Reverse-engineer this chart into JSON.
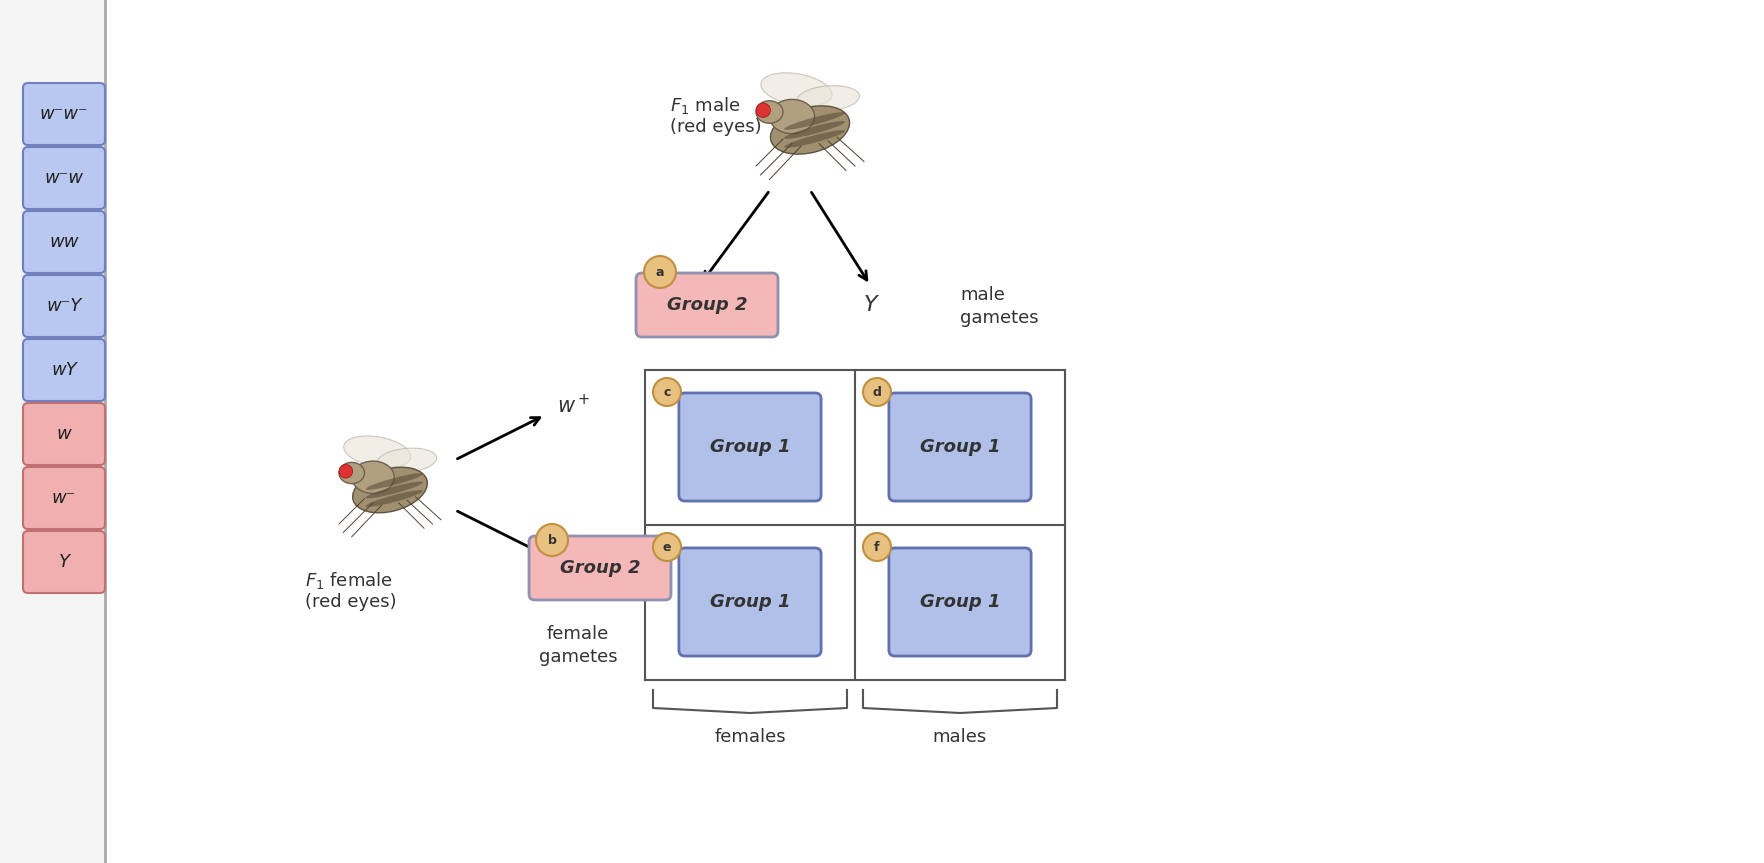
{
  "background_color": "#ffffff",
  "sidebar_boxes": [
    {
      "label": "w⁻w⁻",
      "color": "#b8c8f0",
      "border": "#7080c0",
      "text_color": "#222222"
    },
    {
      "label": "w⁻w",
      "color": "#b8c8f0",
      "border": "#7080c0",
      "text_color": "#222222"
    },
    {
      "label": "ww",
      "color": "#b8c8f0",
      "border": "#7080c0",
      "text_color": "#222222"
    },
    {
      "label": "w⁻Y",
      "color": "#b8c8f0",
      "border": "#7080c0",
      "text_color": "#222222"
    },
    {
      "label": "wY",
      "color": "#b8c8f0",
      "border": "#7080c0",
      "text_color": "#222222"
    },
    {
      "label": "w",
      "color": "#f0b0b0",
      "border": "#c07070",
      "text_color": "#222222"
    },
    {
      "label": "w⁻",
      "color": "#f0b0b0",
      "border": "#c07070",
      "text_color": "#222222"
    },
    {
      "label": "Y",
      "color": "#f0b0b0",
      "border": "#c07070",
      "text_color": "#222222"
    }
  ],
  "circle_color": "#e8c080",
  "circle_border": "#c09040",
  "pink_box_color": "#f5b8b8",
  "pink_box_border": "#9090b0",
  "blue_box_color": "#b0c0e8",
  "blue_box_border": "#6070b0",
  "grid_col_labels": [
    "females",
    "males"
  ],
  "cells": [
    {
      "label": "Group 1",
      "letter": "c"
    },
    {
      "label": "Group 1",
      "letter": "d"
    },
    {
      "label": "Group 1",
      "letter": "e"
    },
    {
      "label": "Group 1",
      "letter": "f"
    }
  ]
}
